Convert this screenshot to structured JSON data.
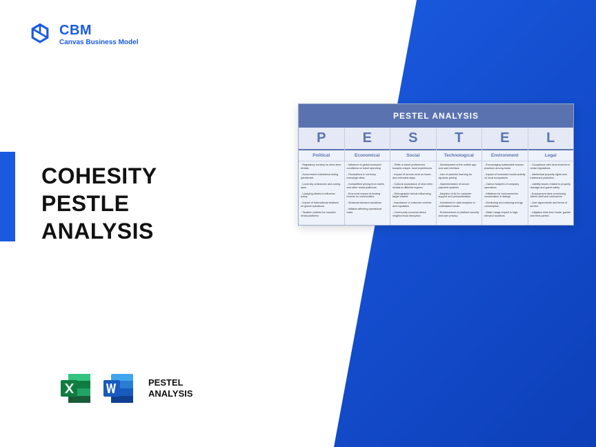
{
  "logo": {
    "title": "CBM",
    "subtitle": "Canvas Business Model"
  },
  "main_title_lines": [
    "COHESITY",
    "PESTLE",
    "ANALYSIS"
  ],
  "pestel_label_lines": [
    "PESTEL",
    "ANALYSIS"
  ],
  "diagram": {
    "title": "PESTEL ANALYSIS",
    "columns": [
      {
        "letter": "P",
        "name": "Political",
        "items": [
          "- Regulatory scrutiny on short-term rentals",
          "- Government restrictions during pandemics",
          "- Local city ordinances and zoning laws",
          "- Lobbying efforts to influence policy",
          "- Impact of international relations on global operations",
          "- Taxation policies for vacation rental platforms"
        ]
      },
      {
        "letter": "E",
        "name": "Economical",
        "items": [
          "- Influence of global economic conditions on travel spending",
          "- Fluctuations in currency exchange rates",
          "- Competitive pricing from hotels and other rental platforms",
          "- Economic impact of hosting income on communities",
          "- Seasonal demand variations",
          "- Inflation affecting operational costs"
        ]
      },
      {
        "letter": "S",
        "name": "Social",
        "items": [
          "- Shifts in travel preferences towards unique, local experiences",
          "- Impact of remote work on travel and extended stays",
          "- Cultural acceptance of short-term rentals in different regions",
          "- Demographic trends influencing target market",
          "- Importance of customer reviews and reputation",
          "- Community concerns about neighborhood disruption"
        ]
      },
      {
        "letter": "T",
        "name": "Technological",
        "items": [
          "- Development of the mobile app and user interface",
          "- Use of machine learning for dynamic pricing",
          "- Implementation of secure payment systems",
          "- Adoption of AI for customer support and personalization",
          "- Investment in data analytics to understand trends",
          "- Enhancement of platform security and user privacy"
        ]
      },
      {
        "letter": "E",
        "name": "Environment",
        "items": [
          "- Encouraging sustainable tourism practices among hosts",
          "- Impact of increased tourist activity on local ecosystems",
          "- Carbon footprint of company operations",
          "- Initiatives for environmental conservation in listings",
          "- Monitoring and reducing energy consumption",
          "- Water usage impact in high-demand locations"
        ]
      },
      {
        "letter": "L",
        "name": "Legal",
        "items": [
          "- Compliance with local short-term rental regulations",
          "- Intellectual property rights and trademark protection",
          "- Liability issues related to property damage and guest safety",
          "- Employment laws concerning Airbnb staff and contractors",
          "- User agreements and terms of service",
          "- Litigation risks from hosts, guests, and third parties"
        ]
      }
    ]
  },
  "colors": {
    "primary": "#1a5ae0",
    "header": "#5a73b0"
  }
}
